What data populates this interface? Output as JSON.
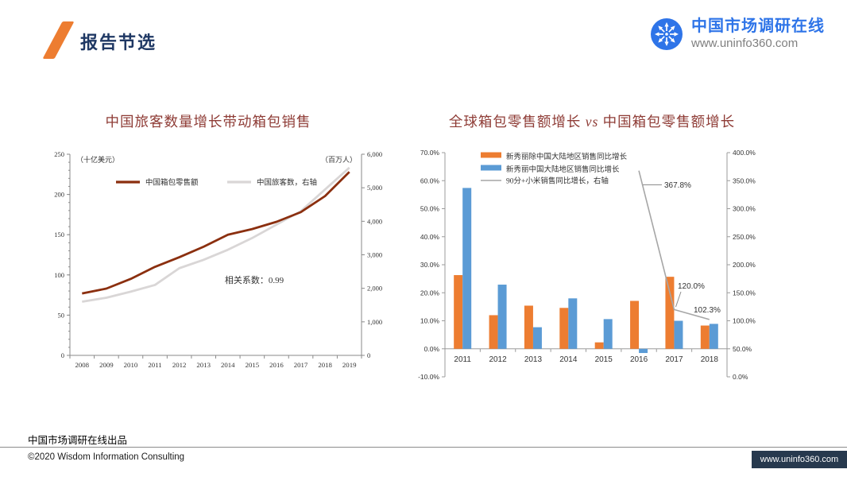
{
  "header": {
    "title": "报告节选",
    "accent_color": "#ED7D31",
    "title_color": "#1F3864"
  },
  "logo": {
    "name": "中国市场调研在线",
    "url": "www.uninfo360.com",
    "brand_color": "#2E74E8"
  },
  "chart_data": [
    {
      "type": "line",
      "title": "中国旅客数量增长带动箱包销售",
      "x": [
        "2008",
        "2009",
        "2010",
        "2011",
        "2012",
        "2013",
        "2014",
        "2015",
        "2016",
        "2017",
        "2018",
        "2019"
      ],
      "series": [
        {
          "name": "中国箱包零售额",
          "axis": "left",
          "color": "#8B2F0F",
          "values": [
            77,
            83,
            95,
            110,
            122,
            135,
            150,
            157,
            166,
            178,
            198,
            228
          ]
        },
        {
          "name": "中国旅客数，右轴",
          "axis": "right",
          "color": "#D9D6D6",
          "values": [
            1600,
            1720,
            1900,
            2100,
            2600,
            2850,
            3150,
            3500,
            3900,
            4300,
            4950,
            5600
          ]
        }
      ],
      "left_axis": {
        "label": "（十亿美元）",
        "min": 0,
        "max": 250,
        "step": 50,
        "ticks": [
          "0",
          "50",
          "100",
          "150",
          "200",
          "250"
        ]
      },
      "right_axis": {
        "label": "（百万人）",
        "min": 0,
        "max": 6000,
        "step": 1000,
        "ticks": [
          "0",
          "1,000",
          "2,000",
          "3,000",
          "4,000",
          "5,000",
          "6,000"
        ]
      },
      "annotation": {
        "text": "相关系数：0.99",
        "color": "#A63E2A"
      },
      "legend_position": "top-inside",
      "grid": false
    },
    {
      "type": "bar",
      "title": "全球箱包零售额增长 vs 中国箱包零售额增长",
      "title_pre": "全球箱包零售额增长 ",
      "title_vs": "vs",
      "title_post": " 中国箱包零售额增长",
      "categories": [
        "2011",
        "2012",
        "2013",
        "2014",
        "2015",
        "2016",
        "2017",
        "2018"
      ],
      "series": [
        {
          "name": "新秀丽除中国大陆地区销售同比增长",
          "type": "bar",
          "axis": "left",
          "color": "#ED7D31",
          "values": [
            26.3,
            12.0,
            15.4,
            14.6,
            2.3,
            17.1,
            25.7,
            8.3
          ]
        },
        {
          "name": "新秀丽中国大陆地区销售同比增长",
          "type": "bar",
          "axis": "left",
          "color": "#5B9BD5",
          "values": [
            57.4,
            22.9,
            7.7,
            18.0,
            10.6,
            -1.5,
            10.0,
            8.9
          ]
        },
        {
          "name": "90分+小米销售同比增长，右轴",
          "type": "line",
          "axis": "right",
          "color": "#A6A6A6",
          "values": [
            null,
            null,
            null,
            null,
            null,
            367.8,
            120.0,
            102.3
          ]
        }
      ],
      "left_axis": {
        "min": -10,
        "max": 70,
        "step": 10,
        "ticks": [
          "-10.0%",
          "0.0%",
          "10.0%",
          "20.0%",
          "30.0%",
          "40.0%",
          "50.0%",
          "60.0%",
          "70.0%"
        ]
      },
      "right_axis": {
        "min": 0,
        "max": 400,
        "step": 50,
        "ticks": [
          "0.0%",
          "50.0%",
          "100.0%",
          "150.0%",
          "200.0%",
          "250.0%",
          "300.0%",
          "350.0%",
          "400.0%"
        ]
      },
      "annotations": [
        {
          "text": "367.8%"
        },
        {
          "text": "120.0%"
        },
        {
          "text": "102.3%"
        }
      ],
      "legend_position": "top-inside",
      "grid": false
    }
  ],
  "footer": {
    "producer": "中国市场调研在线出品",
    "copyright": "©2020 Wisdom Information Consulting",
    "badge": "www.uninfo360.com",
    "badge_color": "#27394E"
  }
}
